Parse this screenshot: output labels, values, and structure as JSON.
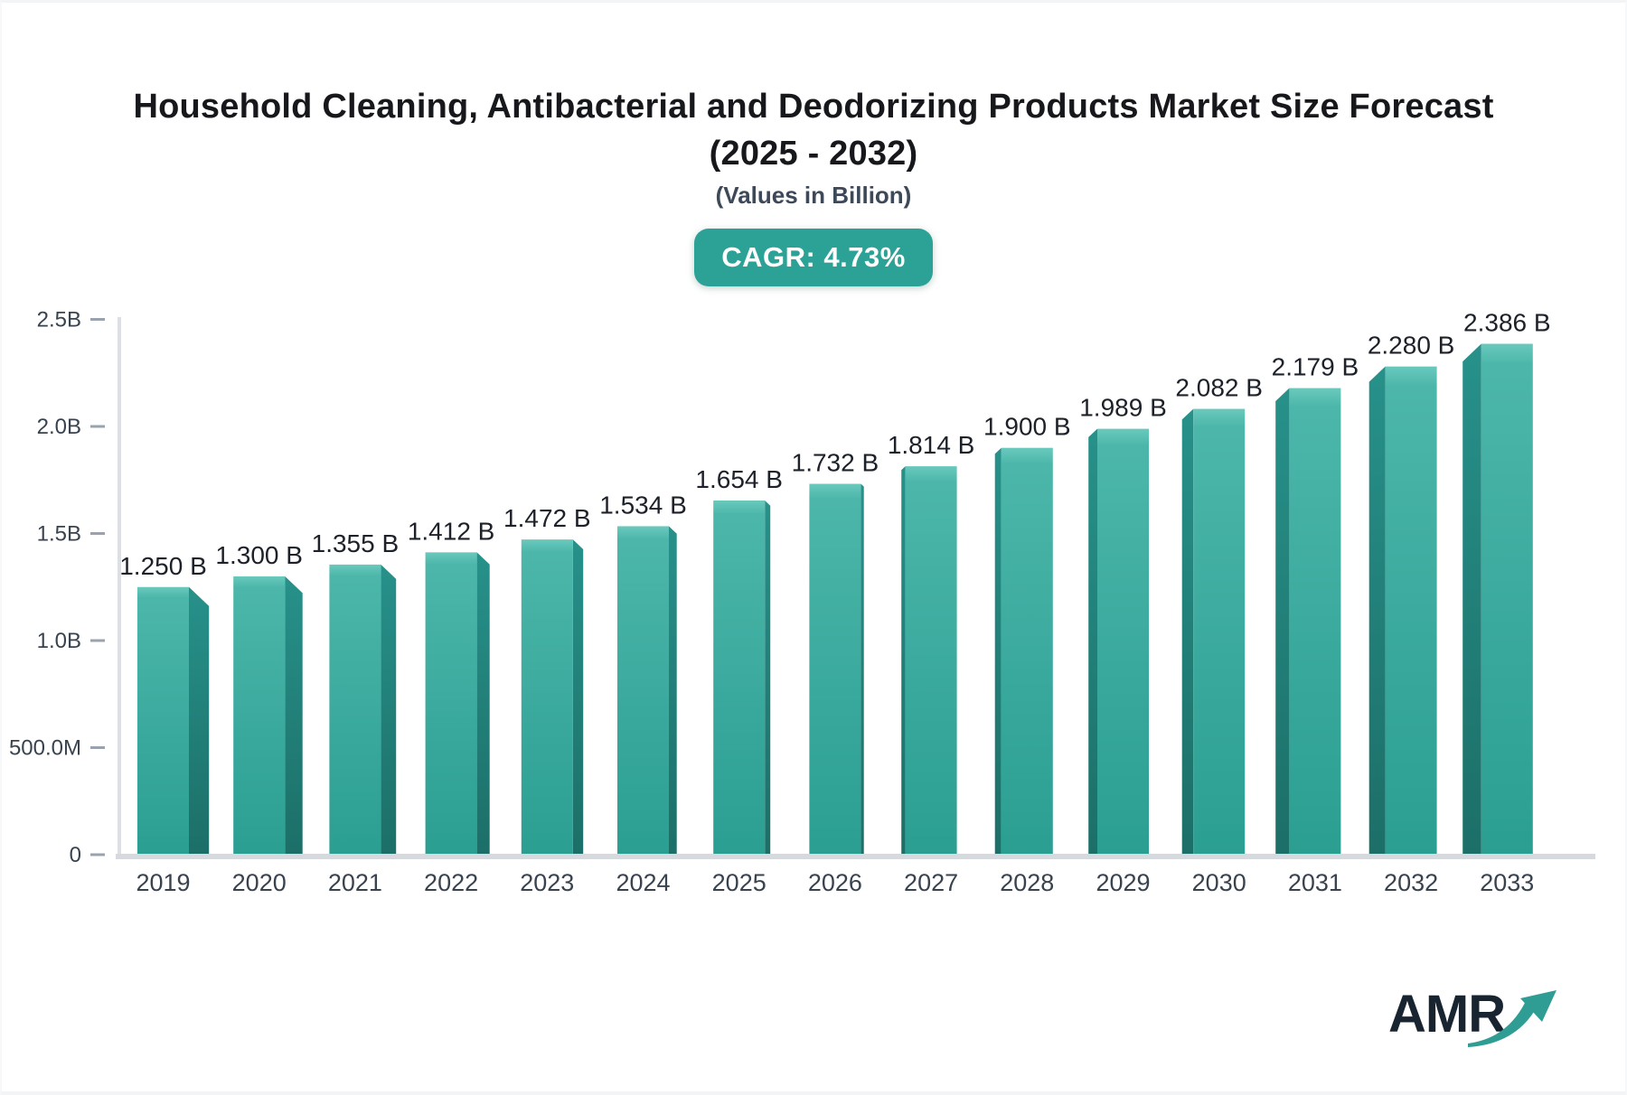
{
  "page": {
    "title_line1": "Household Cleaning, Antibacterial and Deodorizing Products Market Size Forecast",
    "title_line2": "(2025 - 2032)",
    "subtitle": "(Values in Billion)",
    "badge": "CAGR: 4.73%",
    "logo_text": "AMR"
  },
  "colors": {
    "bar_face_light": "#6ac9bd",
    "bar_face_top": "#4cb6aa",
    "bar_face_bottom": "#2b9e92",
    "bar_side_top": "#27918a",
    "bar_side_bottom": "#1c6f68",
    "badge_bg": "#2ca296",
    "badge_text": "#ffffff",
    "axis_line": "#dcdfe3",
    "baseline": "#d6d9de",
    "tick_dash": "#9aa3ad",
    "axis_text": "#39434f",
    "value_label": "#1d2129",
    "logo_arrow": "#2f9d94",
    "title_text": "#17181c"
  },
  "chart_data": {
    "type": "bar",
    "title": "Household Cleaning, Antibacterial and Deodorizing Products Market Size Forecast (2025 - 2032)",
    "subtitle": "(Values in Billion)",
    "cagr_percent": 4.73,
    "unit": "Billion",
    "xlabel": "",
    "ylabel": "",
    "grid": false,
    "legend": "none",
    "ylim": [
      0,
      2.5
    ],
    "y_ticks": [
      {
        "value": 0,
        "label": "0"
      },
      {
        "value": 0.5,
        "label": "500.0M"
      },
      {
        "value": 1.0,
        "label": "1.0B"
      },
      {
        "value": 1.5,
        "label": "1.5B"
      },
      {
        "value": 2.0,
        "label": "2.0B"
      },
      {
        "value": 2.5,
        "label": "2.5B"
      }
    ],
    "categories": [
      "2019",
      "2020",
      "2021",
      "2022",
      "2023",
      "2024",
      "2025",
      "2026",
      "2027",
      "2028",
      "2029",
      "2030",
      "2031",
      "2032",
      "2033"
    ],
    "values": [
      1.25,
      1.3,
      1.355,
      1.412,
      1.472,
      1.534,
      1.654,
      1.732,
      1.814,
      1.9,
      1.989,
      2.082,
      2.179,
      2.28,
      2.386
    ],
    "value_labels": [
      "1.250 B",
      "1.300 B",
      "1.355 B",
      "1.412 B",
      "1.472 B",
      "1.534 B",
      "1.654 B",
      "1.732 B",
      "1.814 B",
      "1.900 B",
      "1.989 B",
      "2.082 B",
      "2.179 B",
      "2.280 B",
      "2.386 B"
    ]
  }
}
